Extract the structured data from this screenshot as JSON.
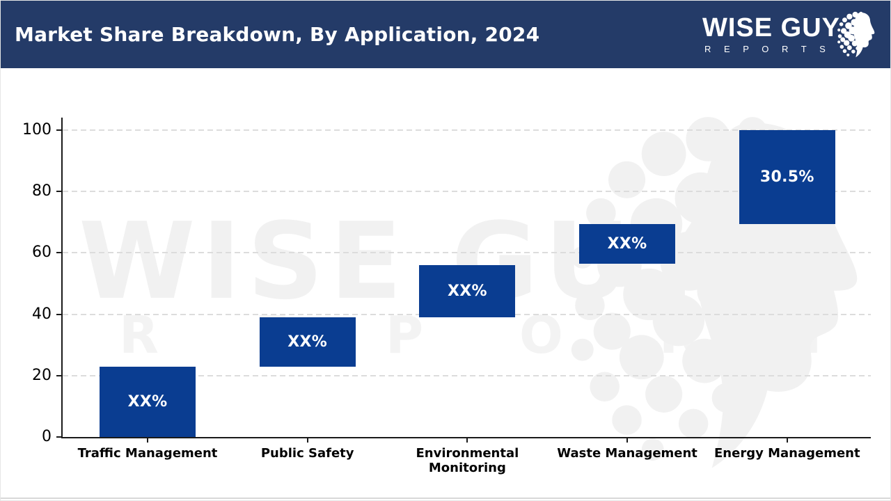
{
  "header": {
    "title": "Market Share Breakdown, By Application, 2024",
    "logo": {
      "line1": "WISE GUY",
      "line2": "R E P O R T S"
    }
  },
  "watermark": {
    "line1": "WISE GUY",
    "line2": "R E P O R T S"
  },
  "colors": {
    "header_bg": "#243b68",
    "bar": "#0a3d91",
    "bar_label": "#ffffff",
    "grid": "#dcdcdc",
    "axis": "#1a1a1a",
    "watermark": "#f1f1f1"
  },
  "chart_data": {
    "type": "bar",
    "subtype": "waterfall",
    "title": "Market Share Breakdown, By Application, 2024",
    "xlabel": "",
    "ylabel": "",
    "categories": [
      "Traffic Management",
      "Public Safety",
      "Environmental\nMonitoring",
      "Waste Management",
      "Energy Management"
    ],
    "segments": [
      {
        "category": "Traffic Management",
        "start": 0,
        "end": 23,
        "label": "XX%"
      },
      {
        "category": "Public Safety",
        "start": 23,
        "end": 39,
        "label": "XX%"
      },
      {
        "category": "Environmental Monitoring",
        "start": 39,
        "end": 56,
        "label": "XX%"
      },
      {
        "category": "Waste Management",
        "start": 56.5,
        "end": 69.5,
        "label": "XX%"
      },
      {
        "category": "Energy Management",
        "start": 69.5,
        "end": 100,
        "label": "30.5%"
      }
    ],
    "yticks": [
      0,
      20,
      40,
      60,
      80,
      100
    ],
    "ylim": [
      0,
      104
    ],
    "grid": "dashed-horizontal",
    "legend": "none"
  }
}
